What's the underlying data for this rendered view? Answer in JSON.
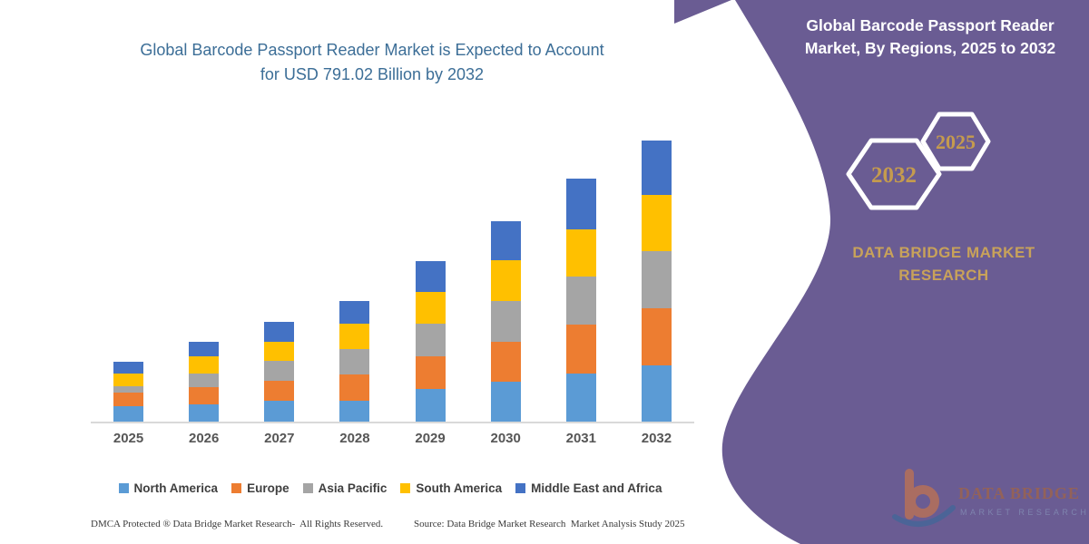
{
  "chart": {
    "title_line1": "Global Barcode Passport Reader Market is Expected to Account",
    "title_line2": "for USD 791.02 Billion by 2032"
  },
  "chart_data": {
    "type": "bar",
    "stacked": true,
    "title": "Global Barcode Passport Reader Market is Expected to Account for USD 791.02 Billion by 2032",
    "unit": "USD Billion",
    "categories": [
      "2025",
      "2026",
      "2027",
      "2028",
      "2029",
      "2030",
      "2031",
      "2032"
    ],
    "series": [
      {
        "name": "North America",
        "color": "#5B9BD5",
        "values": [
          43.4,
          48.5,
          58.7,
          58.7,
          91.9,
          112.3,
          135.3,
          158.2
        ]
      },
      {
        "name": "Europe",
        "color": "#ED7D31",
        "values": [
          38.3,
          48.5,
          56.1,
          74.0,
          91.9,
          112.3,
          137.8,
          160.8
        ]
      },
      {
        "name": "Asia Pacific",
        "color": "#A5A5A5",
        "values": [
          17.9,
          38.3,
          56.1,
          71.5,
          91.9,
          114.8,
          135.3,
          160.8
        ]
      },
      {
        "name": "South America",
        "color": "#FFC000",
        "values": [
          35.7,
          48.5,
          53.6,
          71.5,
          89.3,
          114.8,
          132.7,
          158.2
        ]
      },
      {
        "name": "Middle East and Africa",
        "color": "#4472C4",
        "values": [
          33.2,
          40.8,
          56.1,
          63.8,
          86.8,
          109.7,
          142.9,
          153.1
        ]
      }
    ],
    "totals": [
      168.5,
      224.6,
      280.6,
      339.5,
      451.8,
      563.9,
      684.0,
      791.0
    ],
    "xlabel": "",
    "ylabel": "",
    "ylim": [
      0,
      850
    ],
    "grid": false,
    "legend_position": "bottom"
  },
  "panel": {
    "title_line1": "Global Barcode Passport Reader",
    "title_line2": "Market, By Regions, 2025 to 2032",
    "hex_back_label": "2032",
    "hex_front_label": "2025",
    "brand_line1": "DATA BRIDGE MARKET",
    "brand_line2": "RESEARCH"
  },
  "logo": {
    "name_line": "DATA BRIDGE",
    "tagline": "MARKET RESEARCH"
  },
  "footer": {
    "left": "DMCA Protected ® Data Bridge Market Research-  All Rights Reserved.",
    "right": "Source: Data Bridge Market Research  Market Analysis Study 2025"
  },
  "colors": {
    "panel_purple": "#6a5c93",
    "gold": "#c59b4e",
    "title_blue": "#3c6e97",
    "axis_line": "#d9d9d9",
    "legend_text": "#3f3f3f"
  }
}
